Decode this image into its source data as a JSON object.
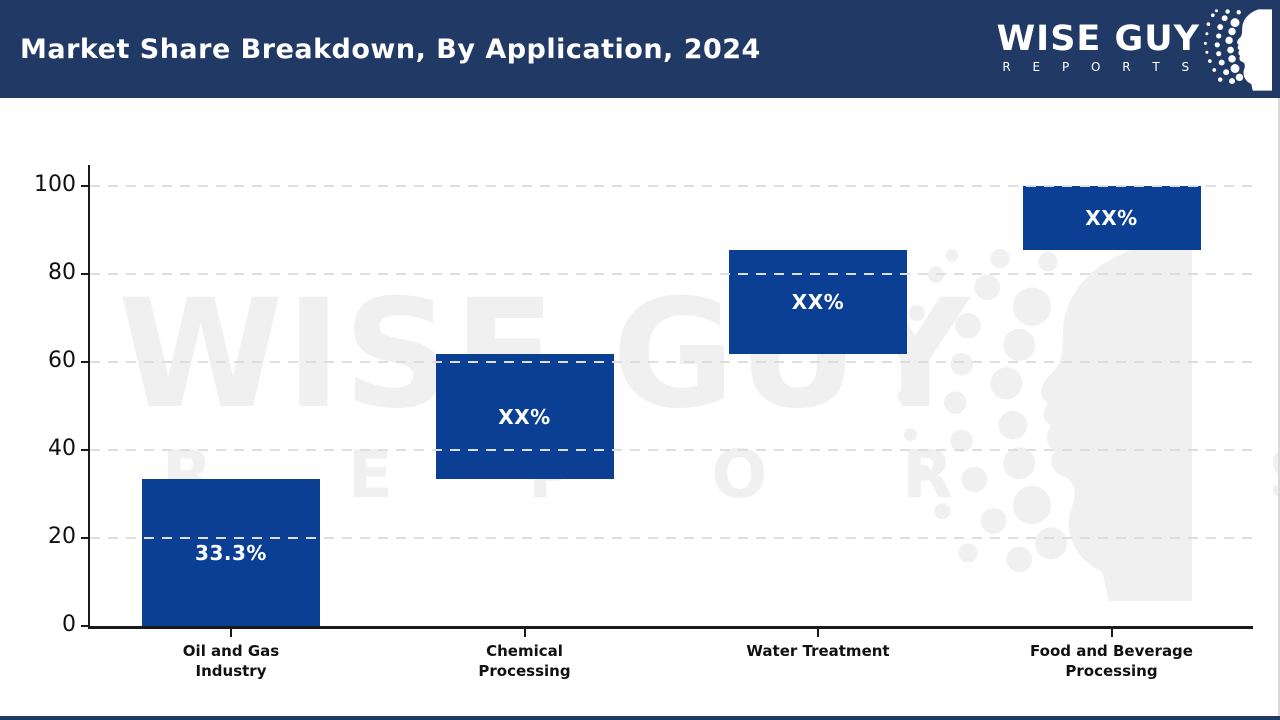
{
  "header": {
    "title": "Market Share Breakdown, By Application, 2024",
    "logo": {
      "line1": "WISE GUY",
      "line2": "R E P O R T S",
      "head_icon": "dotted-head-profile"
    }
  },
  "watermark": {
    "line1": "WISE GUY",
    "line2": "R E P O R T S",
    "head_icon": "dotted-head-profile"
  },
  "colors": {
    "header_bg": "#213965",
    "footer_bg": "#213965",
    "bar_fill": "#0b3f94",
    "bar_label_text": "#ffffff",
    "grid_line": "#dedede",
    "axis_line": "#1a1a1a",
    "tick_label_text": "#111111",
    "watermark": "#f0f0f0",
    "title_text": "#ffffff"
  },
  "chart_data": {
    "type": "bar",
    "subtype": "floating-segment (waterfall-style market share breakdown)",
    "title": "Market Share Breakdown, By Application, 2024",
    "xlabel": "",
    "ylabel": "",
    "categories": [
      "Oil and Gas\nIndustry",
      "Chemical\nProcessing",
      "Water Treatment",
      "Food and Beverage\nProcessing"
    ],
    "segments": [
      {
        "category": "Oil and Gas Industry",
        "start": 0,
        "end": 33.3,
        "label": "33.3%"
      },
      {
        "category": "Chemical Processing",
        "start": 33.3,
        "end": 61.8,
        "label": "XX%"
      },
      {
        "category": "Water Treatment",
        "start": 61.8,
        "end": 85.5,
        "label": "XX%"
      },
      {
        "category": "Food and Beverage Processing",
        "start": 85.5,
        "end": 100,
        "label": "XX%"
      }
    ],
    "yticks": [
      0,
      20,
      40,
      60,
      80,
      100
    ],
    "ylim": [
      0,
      105
    ],
    "grid": "horizontal dashed, drawn over bars",
    "legend": "none"
  }
}
